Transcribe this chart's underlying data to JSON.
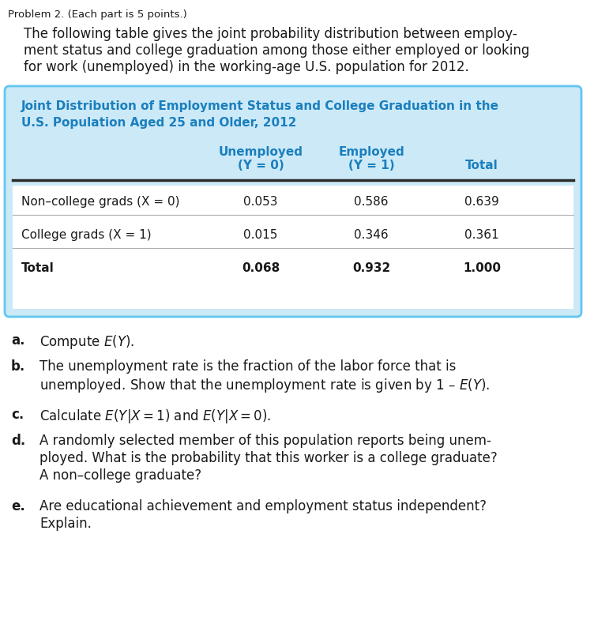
{
  "problem_header": "Problem 2. (Each part is 5 points.)",
  "intro_line1": "The following table gives the joint probability distribution between employ-",
  "intro_line2": "ment status and college graduation among those either employed or looking",
  "intro_line3": "for work (unemployed) in the working-age U.S. population for 2012.",
  "table_title_line1": "Joint Distribution of Employment Status and College Graduation in the",
  "table_title_line2": "U.S. Population Aged 25 and Older, 2012",
  "col_header1_line1": "Unemployed",
  "col_header1_line2": "(Y = 0)",
  "col_header2_line1": "Employed",
  "col_header2_line2": "(Y = 1)",
  "col_header3": "Total",
  "row1_label": "Non–college grads (X = 0)",
  "row2_label": "College grads (X = 1)",
  "row3_label": "Total",
  "row1_data": [
    "0.053",
    "0.586",
    "0.639"
  ],
  "row2_data": [
    "0.015",
    "0.346",
    "0.361"
  ],
  "row3_data": [
    "0.068",
    "0.932",
    "1.000"
  ],
  "q_a_label": "a.",
  "q_a_text": "Compute $E(Y)$.",
  "q_b_label": "b.",
  "q_b_line1": "The unemployment rate is the fraction of the labor force that is",
  "q_b_line2": "unemployed. Show that the unemployment rate is given by 1 – $E(Y)$.",
  "q_c_label": "c.",
  "q_c_text": "Calculate $E(Y|X = 1)$ and $E(Y|X = 0)$.",
  "q_d_label": "d.",
  "q_d_line1": "A randomly selected member of this population reports being unem-",
  "q_d_line2": "ployed. What is the probability that this worker is a college graduate?",
  "q_d_line3": "A non–college graduate?",
  "q_e_label": "e.",
  "q_e_line1": "Are educational achievement and employment status independent?",
  "q_e_line2": "Explain.",
  "table_border_color": "#62c6f0",
  "table_header_bg": "#cce9f7",
  "table_title_color": "#1a7fbe",
  "col_header_color": "#1a7fbe",
  "bg_color": "#ffffff",
  "text_color": "#1a1a1a",
  "row_divider_color": "#b0b0b0",
  "thick_line_color": "#2a2a2a"
}
